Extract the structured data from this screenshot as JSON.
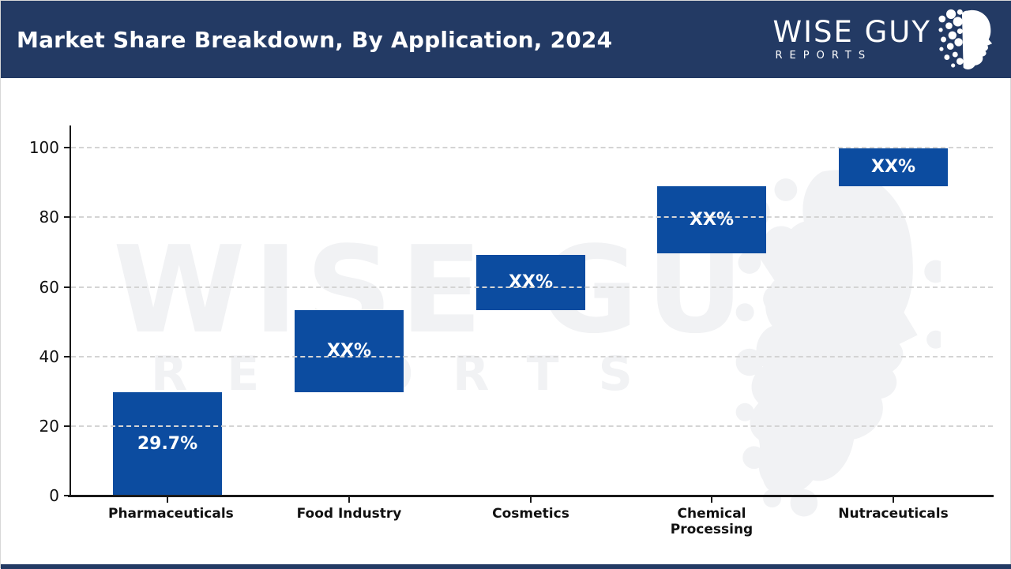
{
  "header": {
    "title": "Market Share Breakdown, By Application, 2024",
    "bg_color": "#233A64",
    "logo": {
      "line1": "WISE GUY",
      "line2": "REPORTS"
    }
  },
  "watermark": {
    "line1": "WISE GUY",
    "line2": "REPORTS"
  },
  "footer": {
    "bg_color": "#233A64"
  },
  "chart_data": {
    "type": "bar",
    "subtype": "waterfall",
    "title": "Market Share Breakdown, By Application, 2024",
    "categories": [
      "Pharmaceuticals",
      "Food Industry",
      "Cosmetics",
      "Chemical Processing",
      "Nutraceuticals"
    ],
    "segments": [
      {
        "category": "Pharmaceuticals",
        "start": 0,
        "end": 29.7,
        "label": "29.7%"
      },
      {
        "category": "Food Industry",
        "start": 29.7,
        "end": 53.4,
        "label": "XX%"
      },
      {
        "category": "Cosmetics",
        "start": 53.4,
        "end": 69.3,
        "label": "XX%"
      },
      {
        "category": "Chemical Processing",
        "start": 69.6,
        "end": 89.0,
        "label": "XX%"
      },
      {
        "category": "Nutraceuticals",
        "start": 89.0,
        "end": 99.9,
        "label": "XX%"
      }
    ],
    "yticks": [
      0,
      20,
      40,
      60,
      80,
      100
    ],
    "ylim": [
      0,
      100
    ],
    "xlabel": "",
    "ylabel": "",
    "bar_color": "#0C4CA0",
    "grid": "dashed-horizontal",
    "legend": "none"
  }
}
